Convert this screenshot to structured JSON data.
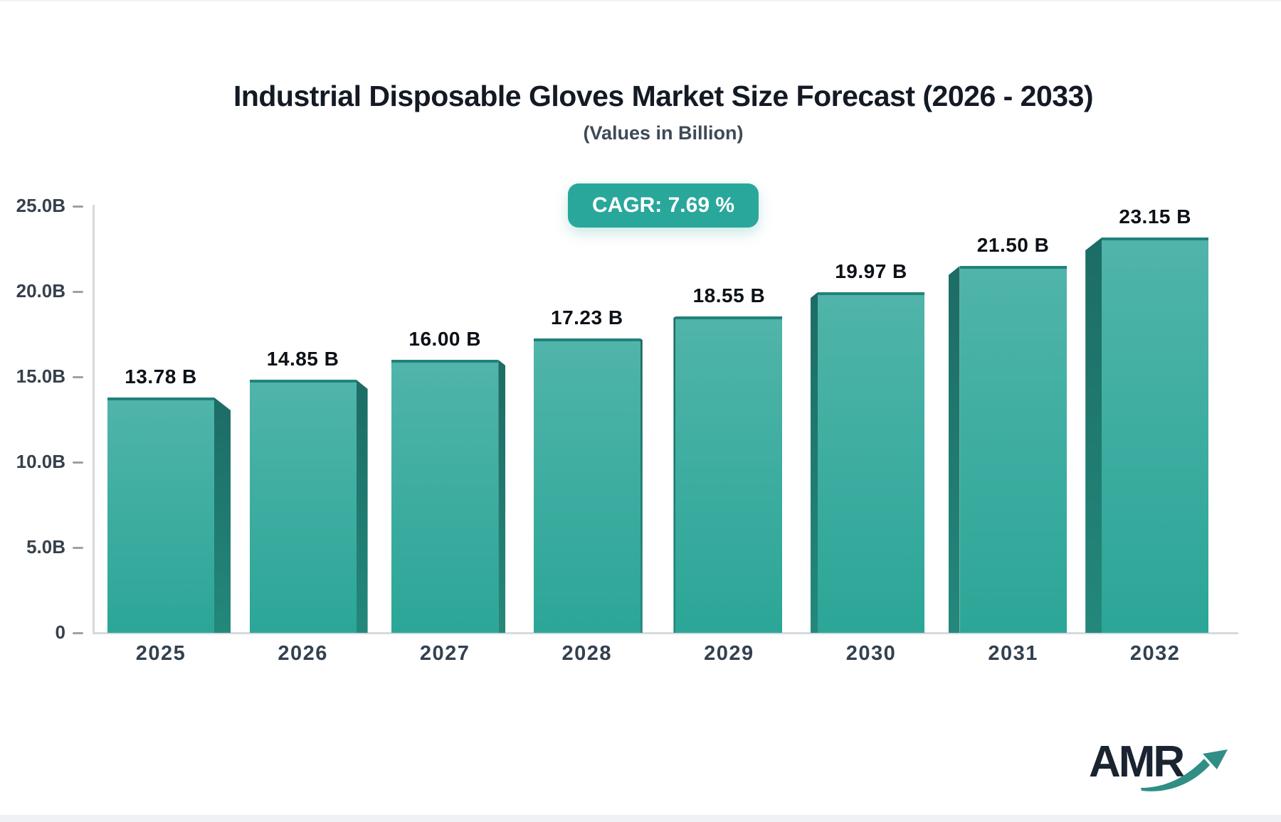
{
  "page": {
    "title": "Industrial Disposable Gloves Market Size Forecast (2026 - 2033)",
    "subtitle": "(Values in Billion)",
    "cagr_badge": "CAGR: 7.69 %"
  },
  "logo": {
    "text": "AMR"
  },
  "chart_data": {
    "type": "bar",
    "title": "Industrial Disposable Gloves Market Size Forecast (2026 - 2033)",
    "subtitle": "(Values in Billion)",
    "annotation": "CAGR: 7.69 %",
    "categories": [
      "2025",
      "2026",
      "2027",
      "2028",
      "2029",
      "2030",
      "2031",
      "2032"
    ],
    "values": [
      13.78,
      14.85,
      16.0,
      17.23,
      18.55,
      19.97,
      21.5,
      23.15
    ],
    "value_labels": [
      "13.78 B",
      "14.85 B",
      "16.00 B",
      "17.23 B",
      "18.55 B",
      "19.97 B",
      "21.50 B",
      "23.15 B"
    ],
    "xlabel": "",
    "ylabel": "",
    "ylim": [
      0,
      25
    ],
    "ytick_values": [
      0,
      5,
      10,
      15,
      20,
      25
    ],
    "ytick_labels": [
      "0",
      "5.0B",
      "10.0B",
      "15.0B",
      "20.0B",
      "25.0B"
    ],
    "grid": false,
    "legend": false,
    "style": "3d-perspective-bars",
    "colors": {
      "bar_face_top": "#50b4aa",
      "bar_face_bottom": "#2ba697",
      "bar_top_edge": "#20837a",
      "bar_side_dark": "#1c6c65",
      "bar_side_light": "#23887b",
      "axis_line": "#d6dade",
      "tick_dash": "#9aa2aa",
      "badge_bg": "#2aa79b",
      "value_text": "#0c1117",
      "year_text": "#33414f",
      "logo_text": "#1a2431",
      "logo_arrow": "#308e85"
    }
  }
}
